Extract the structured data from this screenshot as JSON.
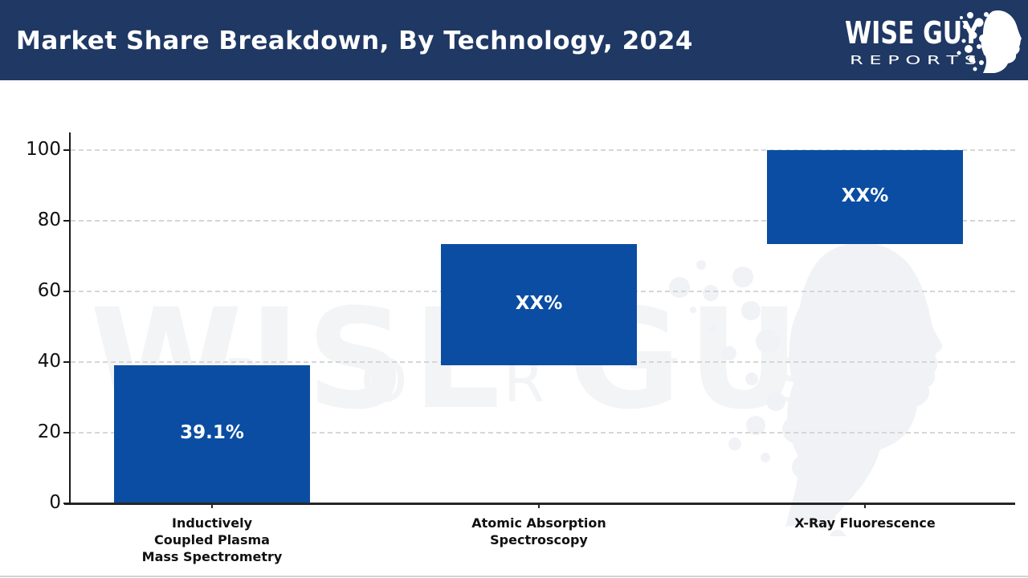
{
  "header": {
    "title": "Market Share Breakdown, By Technology, 2024",
    "logo": {
      "line1": "WISE GUY",
      "line2": "R E P O R T S"
    }
  },
  "watermark": {
    "line1": "WISE GUY",
    "line2": "R O R T S"
  },
  "colors": {
    "header_bg": "#1f3864",
    "bar": "#0b4da2",
    "grid": "#d6d6d6",
    "axis": "#262626",
    "watermark": "#f3f4f6",
    "page_bg": "#ffffff",
    "title_color": "#ffffff",
    "bar_label_color": "#ffffff"
  },
  "chart_data": {
    "type": "bar",
    "subtype": "floating-stacked-percent",
    "title": "Market Share Breakdown, By Technology, 2024",
    "categories": [
      "Inductively Coupled Plasma Mass Spectrometry",
      "Atomic Absorption Spectroscopy",
      "X-Ray Fluorescence"
    ],
    "segments": [
      {
        "category": "Inductively Coupled Plasma Mass Spectrometry",
        "label_lines": [
          "Inductively",
          "Coupled Plasma",
          "Mass Spectrometry"
        ],
        "start": 0,
        "end": 39.1,
        "value_label": "39.1%"
      },
      {
        "category": "Atomic Absorption Spectroscopy",
        "label_lines": [
          "Atomic Absorption",
          "Spectroscopy"
        ],
        "start": 39.1,
        "end": 73.3,
        "value_label": "XX%"
      },
      {
        "category": "X-Ray Fluorescence",
        "label_lines": [
          "X-Ray Fluorescence"
        ],
        "start": 73.3,
        "end": 100,
        "value_label": "XX%"
      }
    ],
    "ylim": [
      0,
      100
    ],
    "yticks": [
      0,
      20,
      40,
      60,
      80,
      100
    ],
    "xlabel": "",
    "ylabel": "",
    "grid": "dashed-horizontal",
    "legend": "none"
  }
}
